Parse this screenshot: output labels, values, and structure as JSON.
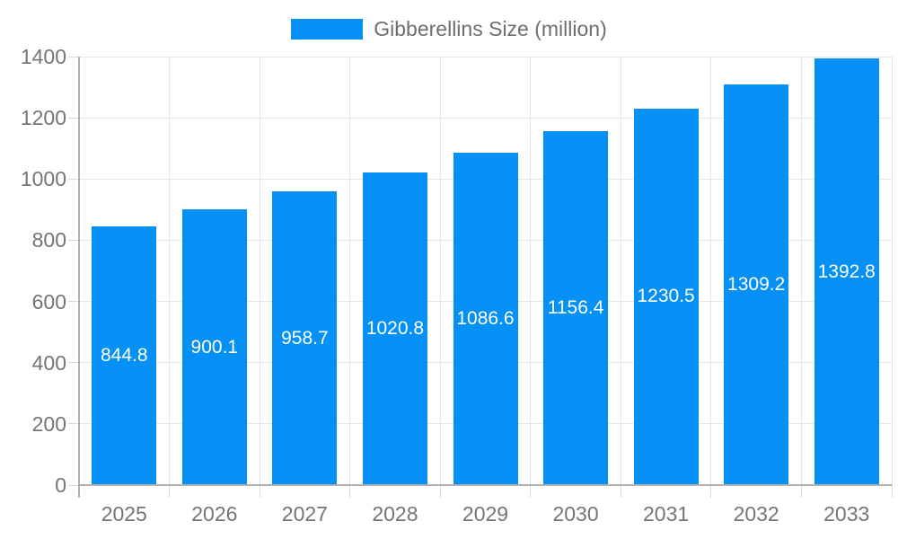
{
  "chart_data": {
    "type": "bar",
    "title": "Gibberellins Size (million)",
    "series_name": "Gibberellins Size (million)",
    "categories": [
      "2025",
      "2026",
      "2027",
      "2028",
      "2029",
      "2030",
      "2031",
      "2032",
      "2033"
    ],
    "values": [
      844.8,
      900.1,
      958.7,
      1020.8,
      1086.6,
      1156.4,
      1230.5,
      1309.2,
      1392.8
    ],
    "value_labels": [
      "844.8",
      "900.1",
      "958.7",
      "1020.8",
      "1086.6",
      "1156.4",
      "1230.5",
      "1309.2",
      "1392.8"
    ],
    "xlabel": "",
    "ylabel": "",
    "ylim": [
      0,
      1400
    ],
    "ytick_step": 200,
    "ytick_labels": [
      "0",
      "200",
      "400",
      "600",
      "800",
      "1000",
      "1200",
      "1400"
    ],
    "grid": true,
    "legend_position": "top-center",
    "value_label_position": "center-of-bar"
  },
  "colors": {
    "bar": "#0590F6",
    "grid": "#e6e6e6",
    "axis": "#b0b0b0",
    "tick": "#d9d9d9",
    "axis_text": "#757575",
    "legend_text": "#6e6e6e",
    "value_text": "#ffffff",
    "background": "#ffffff"
  }
}
